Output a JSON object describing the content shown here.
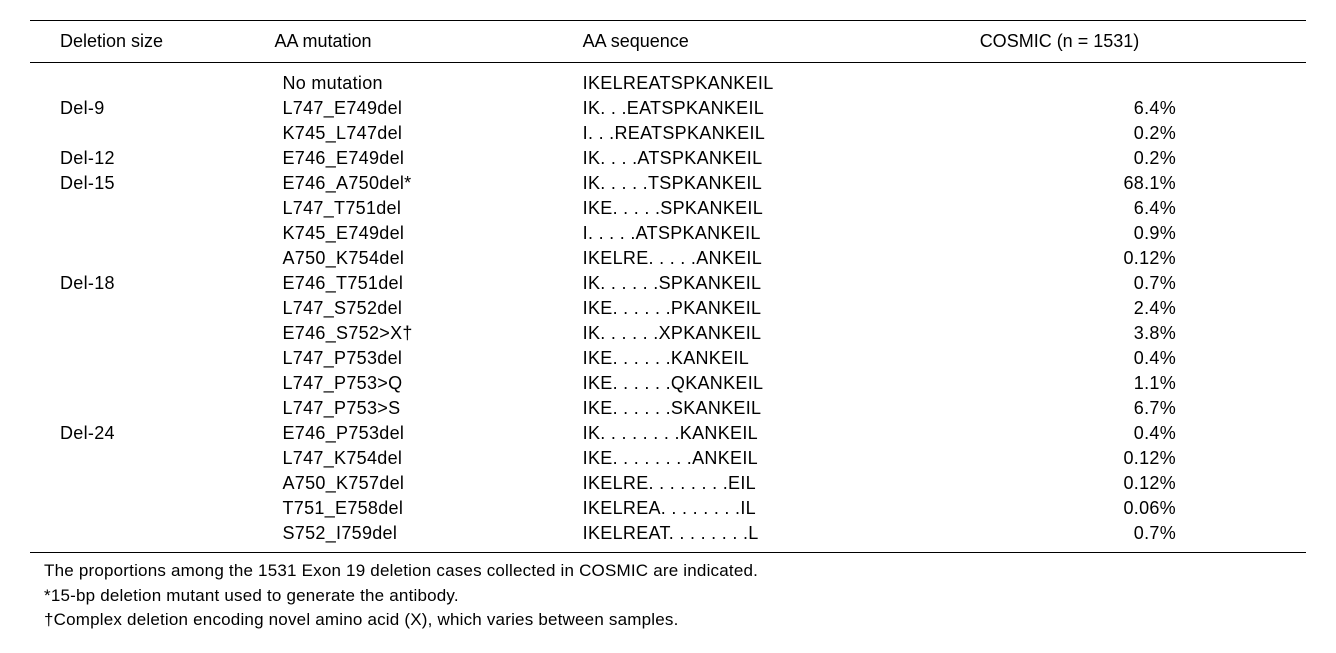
{
  "table": {
    "headers": {
      "deletion_size": "Deletion size",
      "aa_mutation": "AA mutation",
      "aa_sequence": "AA sequence",
      "cosmic": "COSMIC (n = 1531)"
    },
    "rows": [
      {
        "deletion_size": "",
        "aa_mutation": "No mutation",
        "aa_sequence": "IKELREATSPKANKEIL",
        "cosmic": ""
      },
      {
        "deletion_size": "Del-9",
        "aa_mutation": "L747_E749del",
        "aa_sequence": "IK. . .EATSPKANKEIL",
        "cosmic": "6.4%"
      },
      {
        "deletion_size": "",
        "aa_mutation": "K745_L747del",
        "aa_sequence": "I. . .REATSPKANKEIL",
        "cosmic": "0.2%"
      },
      {
        "deletion_size": "Del-12",
        "aa_mutation": "E746_E749del",
        "aa_sequence": "IK. . . .ATSPKANKEIL",
        "cosmic": "0.2%"
      },
      {
        "deletion_size": "Del-15",
        "aa_mutation": "E746_A750del*",
        "aa_sequence": "IK. . . . .TSPKANKEIL",
        "cosmic": "68.1%"
      },
      {
        "deletion_size": "",
        "aa_mutation": "L747_T751del",
        "aa_sequence": "IKE. . . . .SPKANKEIL",
        "cosmic": "6.4%"
      },
      {
        "deletion_size": "",
        "aa_mutation": "K745_E749del",
        "aa_sequence": "I. . . . .ATSPKANKEIL",
        "cosmic": "0.9%"
      },
      {
        "deletion_size": "",
        "aa_mutation": "A750_K754del",
        "aa_sequence": "IKELRE. . . . .ANKEIL",
        "cosmic": "0.12%"
      },
      {
        "deletion_size": "Del-18",
        "aa_mutation": "E746_T751del",
        "aa_sequence": "IK. . . . . .SPKANKEIL",
        "cosmic": "0.7%"
      },
      {
        "deletion_size": "",
        "aa_mutation": "L747_S752del",
        "aa_sequence": "IKE. . . . . .PKANKEIL",
        "cosmic": "2.4%"
      },
      {
        "deletion_size": "",
        "aa_mutation": "E746_S752>X†",
        "aa_sequence": "IK. . . . . .XPKANKEIL",
        "cosmic": "3.8%"
      },
      {
        "deletion_size": "",
        "aa_mutation": "L747_P753del",
        "aa_sequence": "IKE. . . . . .KANKEIL",
        "cosmic": "0.4%"
      },
      {
        "deletion_size": "",
        "aa_mutation": "L747_P753>Q",
        "aa_sequence": "IKE. . . . . .QKANKEIL",
        "cosmic": "1.1%"
      },
      {
        "deletion_size": "",
        "aa_mutation": "L747_P753>S",
        "aa_sequence": "IKE. . . . . .SKANKEIL",
        "cosmic": "6.7%"
      },
      {
        "deletion_size": "Del-24",
        "aa_mutation": "E746_P753del",
        "aa_sequence": "IK. . . . . . . .KANKEIL",
        "cosmic": "0.4%"
      },
      {
        "deletion_size": "",
        "aa_mutation": "L747_K754del",
        "aa_sequence": "IKE. . . . . . . .ANKEIL",
        "cosmic": "0.12%"
      },
      {
        "deletion_size": "",
        "aa_mutation": "A750_K757del",
        "aa_sequence": "IKELRE. . . . . . . .EIL",
        "cosmic": "0.12%"
      },
      {
        "deletion_size": "",
        "aa_mutation": "T751_E758del",
        "aa_sequence": "IKELREA. . . . . . . .IL",
        "cosmic": "0.06%"
      },
      {
        "deletion_size": "",
        "aa_mutation": "S752_I759del",
        "aa_sequence": "IKELREAT. . . . . . . .L",
        "cosmic": "0.7%"
      }
    ]
  },
  "footnotes": {
    "n1": "The proportions among the 1531 Exon 19 deletion cases collected in COSMIC are indicated.",
    "n2": "*15-bp deletion mutant used to generate the antibody.",
    "n3": "†Complex deletion encoding novel amino acid (X), which varies between samples."
  }
}
